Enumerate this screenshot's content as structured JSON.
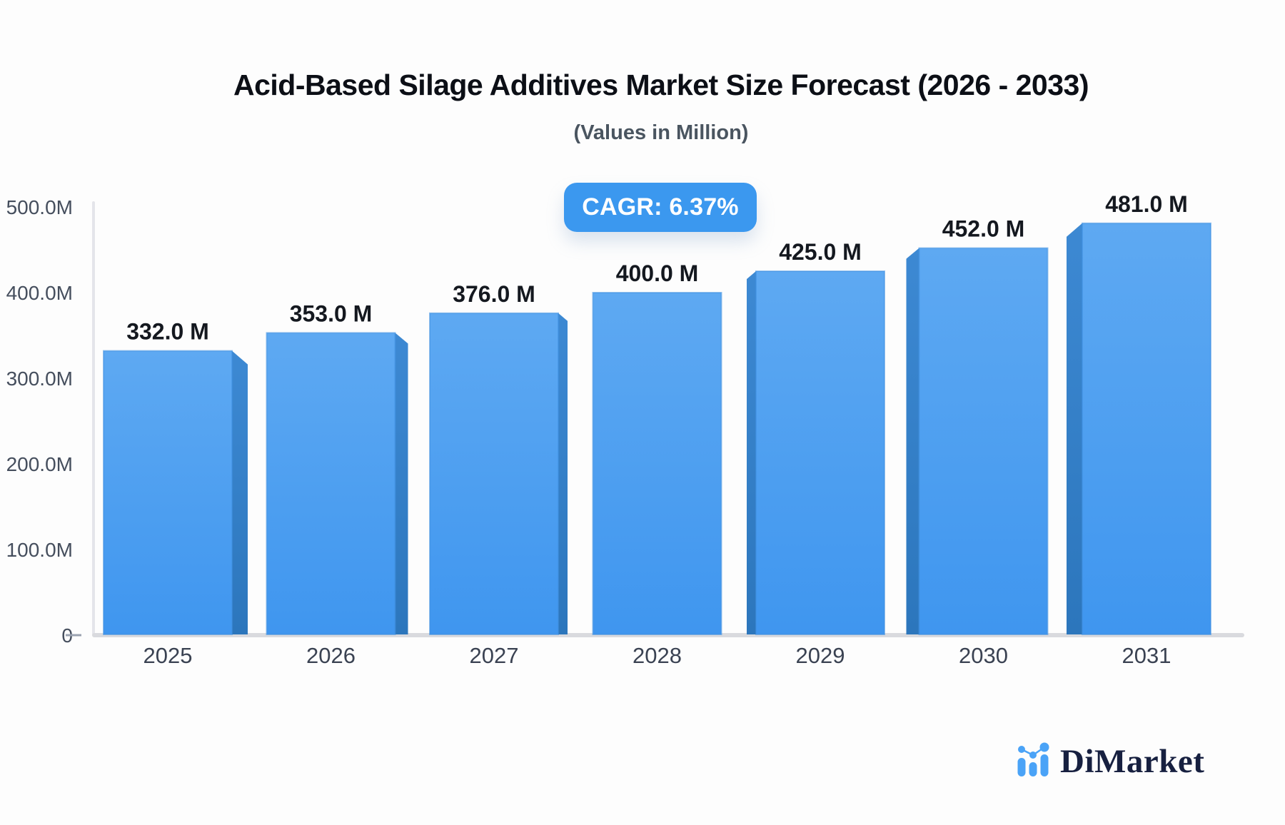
{
  "title": "Acid-Based Silage Additives Market Size Forecast (2026 - 2033)",
  "subtitle": "(Values in Million)",
  "badge": {
    "label": "CAGR: 6.37%"
  },
  "brand": {
    "name": "DiMarket"
  },
  "colors": {
    "bar_face_top": "#5EA9F2",
    "bar_face_bottom": "#3F96EF",
    "bar_face_stroke": "#3F90E0",
    "bar_side_top": "#3D89D3",
    "bar_side_bottom": "#2C76BC",
    "badge_bg": "#3B98EF",
    "axis_line": "#E4E5EA",
    "baseline": "#D9DADE",
    "zero_tick": "#9AA2B0",
    "value_label": "#14181F",
    "x_tick_label": "#3A4252",
    "y_tick_label": "#454E5D",
    "brand_blue": "#4AA3F7",
    "brand_text": "#172040"
  },
  "chart_data": {
    "type": "bar",
    "title": "Acid-Based Silage Additives Market Size Forecast (2026 - 2033)",
    "subtitle": "(Values in Million)",
    "cagr": "6.37%",
    "categories": [
      "2025",
      "2026",
      "2027",
      "2028",
      "2029",
      "2030",
      "2031"
    ],
    "values": [
      332,
      353,
      376,
      400,
      425,
      452,
      481
    ],
    "value_labels": [
      "332.0 M",
      "353.0 M",
      "376.0 M",
      "400.0 M",
      "425.0 M",
      "452.0 M",
      "481.0 M"
    ],
    "ylim": [
      0,
      500
    ],
    "y_ticks": [
      {
        "value": 0,
        "label": "0"
      },
      {
        "value": 100,
        "label": "100.0M"
      },
      {
        "value": 200,
        "label": "200.0M"
      },
      {
        "value": 300,
        "label": "300.0M"
      },
      {
        "value": 400,
        "label": "400.0M"
      },
      {
        "value": 500,
        "label": "500.0M"
      }
    ],
    "grid": false,
    "legend": false,
    "bar_style": "pseudo-3d, perspective toward top-center"
  }
}
